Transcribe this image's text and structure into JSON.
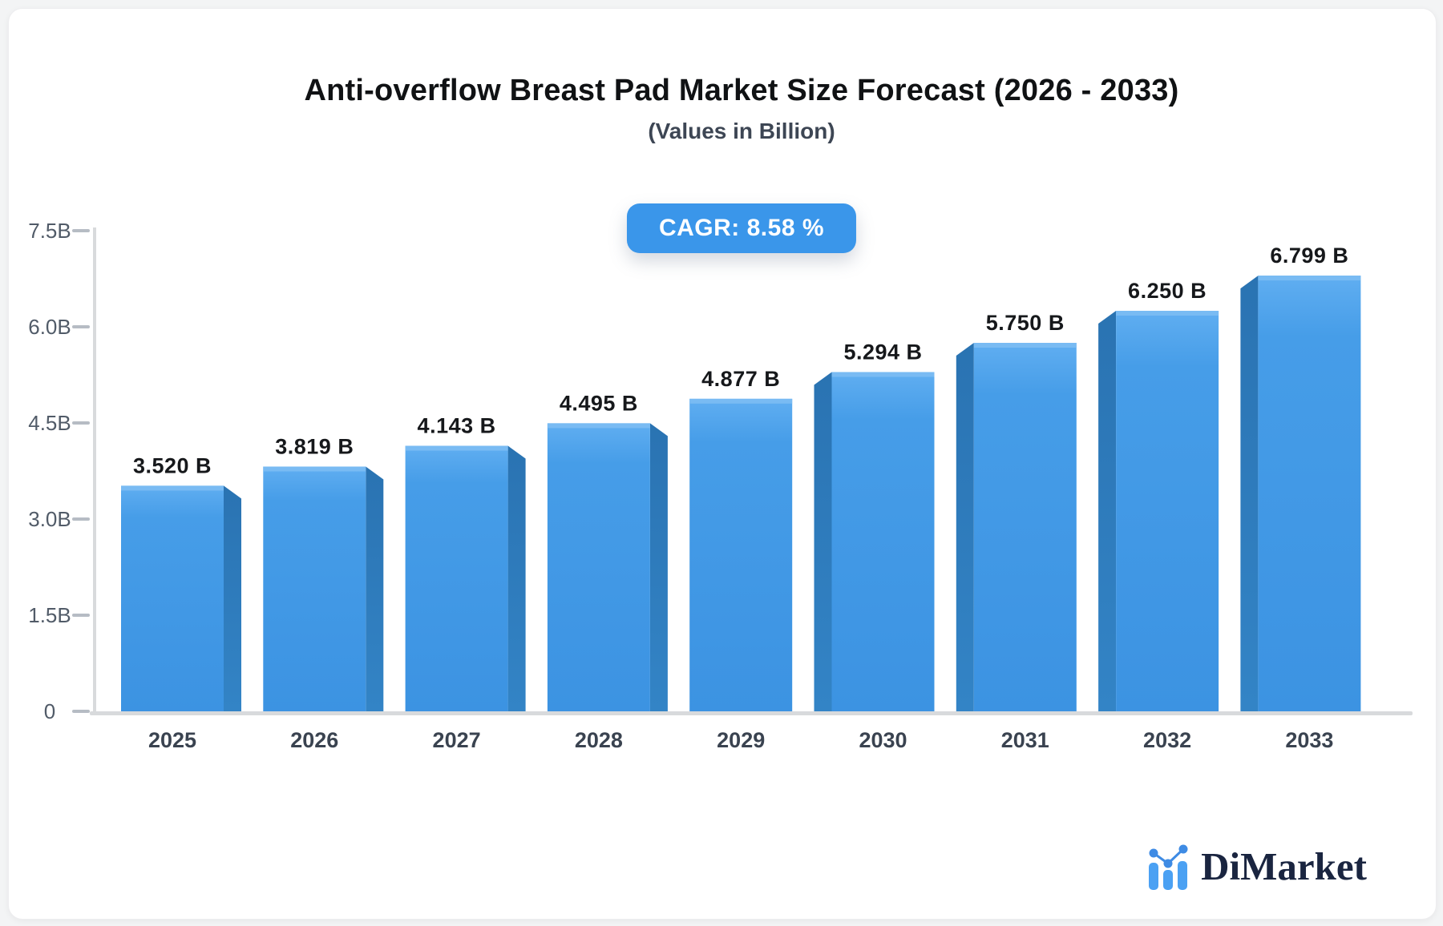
{
  "page": {
    "background": "#f3f4f5",
    "card_background": "#ffffff"
  },
  "badge": {
    "label": "CAGR: 8.58 %",
    "background": "#3a96ea",
    "text_color": "#ffffff"
  },
  "chart_data": {
    "type": "bar",
    "title": "Anti-overflow Breast Pad Market Size Forecast (2026 - 2033)",
    "subtitle": "(Values in Billion)",
    "cagr_percent": 8.58,
    "unit": "Billion",
    "categories": [
      "2025",
      "2026",
      "2027",
      "2028",
      "2029",
      "2030",
      "2031",
      "2032",
      "2033"
    ],
    "values": [
      3.52,
      3.819,
      4.143,
      4.495,
      4.877,
      5.294,
      5.75,
      6.25,
      6.799
    ],
    "value_labels": [
      "3.520 B",
      "3.819 B",
      "4.143 B",
      "4.495 B",
      "4.877 B",
      "5.294 B",
      "5.750 B",
      "6.250 B",
      "6.799 B"
    ],
    "ylim": [
      0,
      7.5
    ],
    "yticks": [
      {
        "value": 0,
        "label": "0"
      },
      {
        "value": 1.5,
        "label": "1.5B"
      },
      {
        "value": 3.0,
        "label": "3.0B"
      },
      {
        "value": 4.5,
        "label": "4.5B"
      },
      {
        "value": 6.0,
        "label": "6.0B"
      },
      {
        "value": 7.5,
        "label": "7.5B"
      }
    ],
    "grid": false,
    "legend": "none",
    "bar_style": {
      "face_top": "#60aef1",
      "face_mid": "#469de8",
      "face_bottom": "#3c93e2",
      "side": "#2e7cbb",
      "side_top": "#2a73b2",
      "side_bottom": "#3384c6",
      "top_strip": "#7cbdf3"
    },
    "axis_color": "#d8dadc",
    "tick_dash_color": "#b6bcc4",
    "ytick_label_color": "#515b68",
    "xtick_label_color": "#3a4350",
    "value_label_color": "#16181b"
  },
  "footer": {
    "logo_text": "DiMarket",
    "logo_icon": "bar-line-chart-icon",
    "logo_color": "#1a2540",
    "logo_blue": "#4BA1F3"
  }
}
